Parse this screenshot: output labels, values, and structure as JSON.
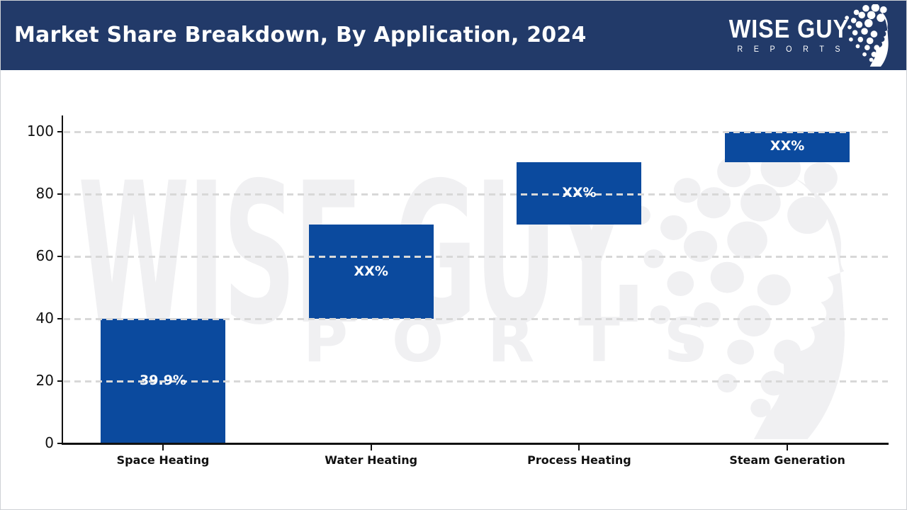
{
  "header": {
    "title": "Market Share Breakdown, By Application, 2024",
    "logo": {
      "line1": "WISE GUY",
      "line2": "R E P O R T S"
    }
  },
  "watermark": {
    "line1": "WISE GUY.",
    "line2": "P O R T S"
  },
  "chart_data": {
    "type": "bar",
    "subtype": "waterfall",
    "title": "Market Share Breakdown, By Application, 2024",
    "categories": [
      "Space Heating",
      "Water Heating",
      "Process Heating",
      "Steam Generation"
    ],
    "segments": [
      {
        "category": "Space Heating",
        "start": 0,
        "end": 39.9,
        "label": "39.9%"
      },
      {
        "category": "Water Heating",
        "start": 39.9,
        "end": 70.2,
        "label": "XX%"
      },
      {
        "category": "Process Heating",
        "start": 70.2,
        "end": 90.3,
        "label": "XX%"
      },
      {
        "category": "Steam Generation",
        "start": 90.3,
        "end": 100,
        "label": "XX%"
      }
    ],
    "y_ticks": [
      0,
      20,
      40,
      60,
      80,
      100
    ],
    "ylim": [
      0,
      105
    ],
    "xlabel": "",
    "ylabel": "",
    "grid": "horizontal-dashed",
    "legend": "none",
    "bar_color": "#0b4a9e",
    "label_color": "#ffffff"
  },
  "colors": {
    "header_bg": "#223a69",
    "bar": "#0b4a9e",
    "watermark": "#f0f0f2",
    "grid": "#d8d8d8",
    "axis": "#111111"
  }
}
